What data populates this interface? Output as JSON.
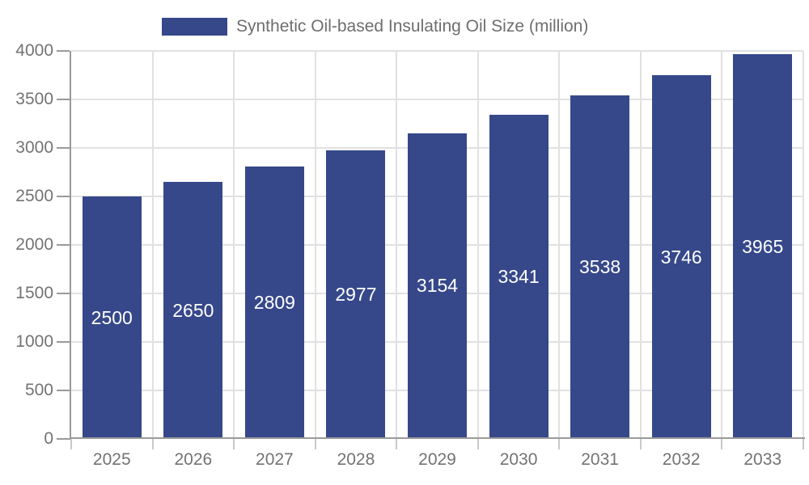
{
  "legend": {
    "label": "Synthetic Oil-based Insulating Oil Size (million)",
    "swatch_color": "#36488a"
  },
  "chart_data": {
    "type": "bar",
    "title": "Synthetic Oil-based Insulating Oil Size (million)",
    "categories": [
      "2025",
      "2026",
      "2027",
      "2028",
      "2029",
      "2030",
      "2031",
      "2032",
      "2033"
    ],
    "series": [
      {
        "name": "Synthetic Oil-based Insulating Oil Size (million)",
        "values": [
          2500,
          2650,
          2809,
          2977,
          3154,
          3341,
          3538,
          3746,
          3965
        ]
      }
    ],
    "xlabel": "",
    "ylabel": "",
    "ylim": [
      0,
      4000
    ],
    "yticks": [
      0,
      500,
      1000,
      1500,
      2000,
      2500,
      3000,
      3500,
      4000
    ],
    "grid": true,
    "grid_vertical": true,
    "legend_position": "top",
    "value_labels_position": "inside-center",
    "colors": {
      "bar": "#36488a",
      "value_label": "#ffffff",
      "axis_label": "#737373",
      "legend_text": "#6e6e6e",
      "grid_line": "#e1e1e1",
      "axis_line": "#9a9a9a",
      "tick": "#c9c9c9",
      "background": "#ffffff"
    }
  }
}
